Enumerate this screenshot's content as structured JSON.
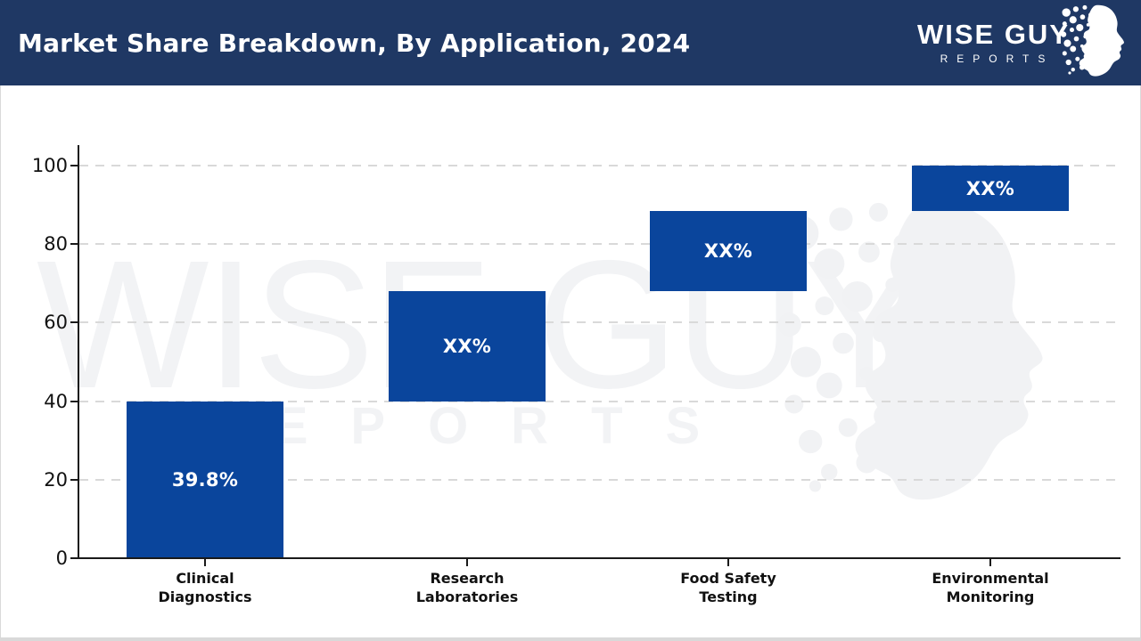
{
  "header": {
    "title": "Market Share Breakdown, By Application, 2024",
    "bg_color": "#1f3864",
    "logo": {
      "line1": "WISE GUY",
      "line2": "REPORTS"
    }
  },
  "watermark": {
    "line1": "WISE GUY",
    "line2": "REPORTS"
  },
  "chart_data": {
    "type": "bar",
    "subtype": "waterfall",
    "title": "Market Share Breakdown, By Application, 2024",
    "bar_color": "#0a459c",
    "grid": "horizontal-dashed",
    "ylim": [
      0,
      100
    ],
    "yticks": [
      0,
      20,
      40,
      60,
      80,
      100
    ],
    "categories": [
      {
        "lines": [
          "Clinical",
          "Diagnostics"
        ]
      },
      {
        "lines": [
          "Research",
          "Laboratories"
        ]
      },
      {
        "lines": [
          "Food Safety",
          "Testing"
        ]
      },
      {
        "lines": [
          "Environmental",
          "Monitoring"
        ]
      }
    ],
    "segments": [
      {
        "category": "Clinical Diagnostics",
        "start": 0,
        "end": 39.8,
        "label": "39.8%"
      },
      {
        "category": "Research Laboratories",
        "start": 39.8,
        "end": 68,
        "label": "XX%"
      },
      {
        "category": "Food Safety Testing",
        "start": 68,
        "end": 88.4,
        "label": "XX%"
      },
      {
        "category": "Environmental Monitoring",
        "start": 88.4,
        "end": 100,
        "label": "XX%"
      }
    ]
  }
}
